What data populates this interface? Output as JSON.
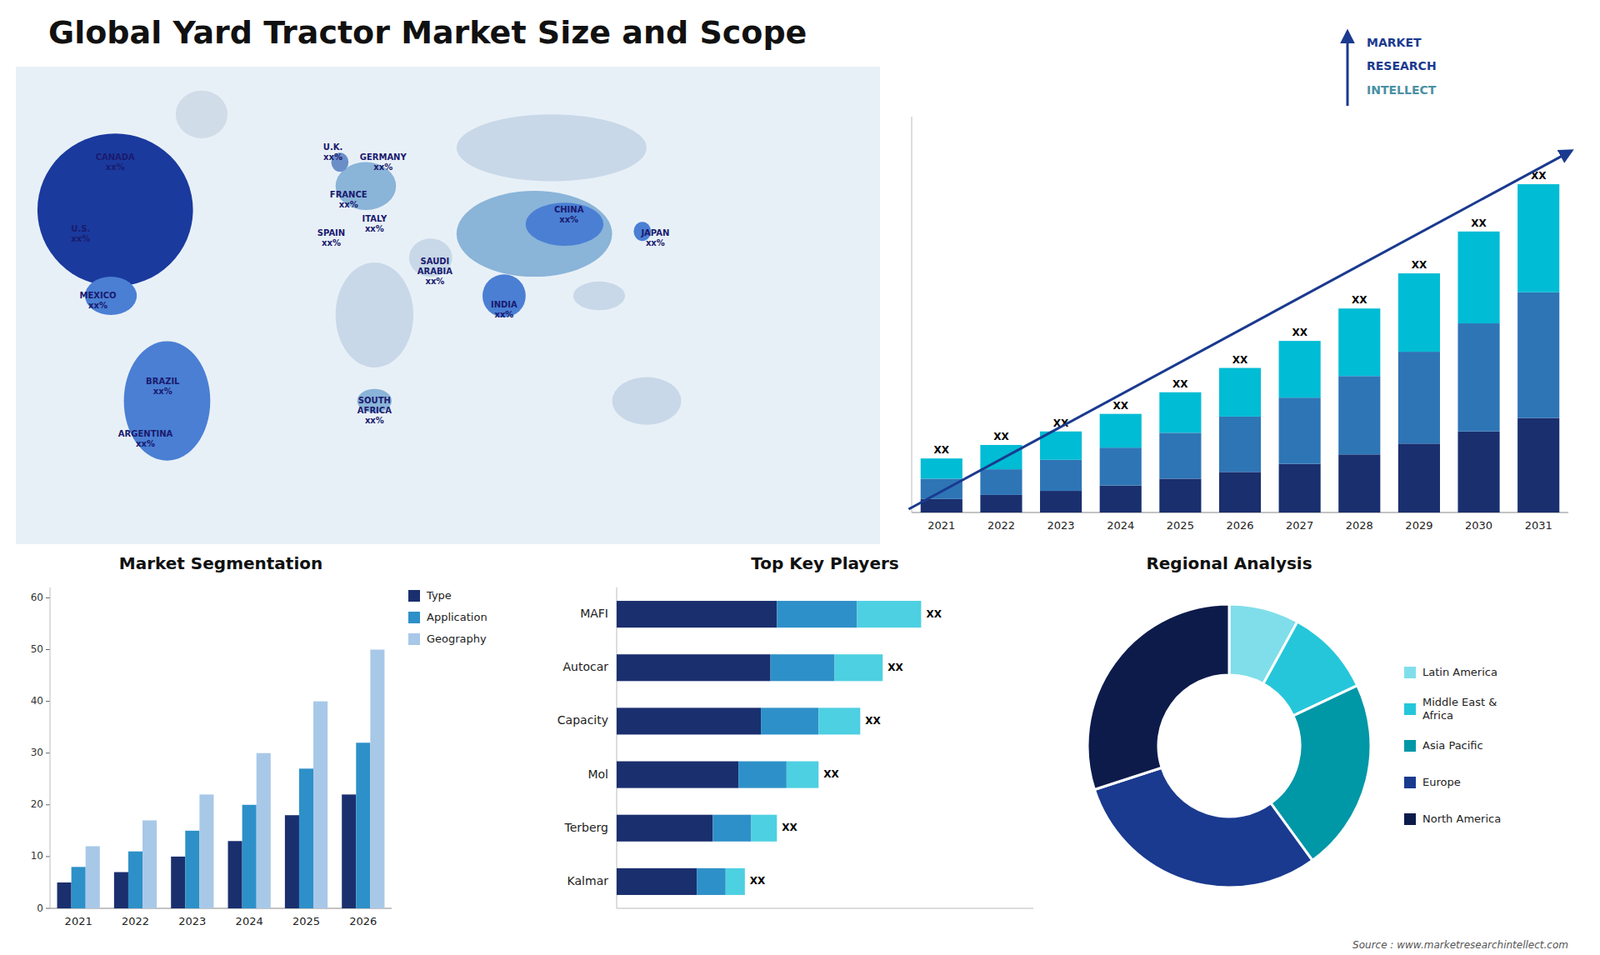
{
  "chart_data": [
    {
      "type": "map",
      "title": "Global Yard Tractor Market Size and Scope",
      "annotations": [
        "CANADA\nxx%",
        "U.S.\nxx%",
        "MEXICO\nxx%",
        "BRAZIL\nxx%",
        "ARGENTINA\nxx%",
        "U.K.\nxx%",
        "FRANCE\nxx%",
        "SPAIN\nxx%",
        "GERMANY\nxx%",
        "ITALY\nxx%",
        "SOUTH\nAFRICA\nxx%",
        "SAUDI\nARABIA\nxx%",
        "CHINA\nxx%",
        "INDIA\nxx%",
        "JAPAN\nxx%",
        "MARKET",
        "RESEARCH",
        "INTELLECT",
        "Source : www.marketresearchintellect.com"
      ],
      "color": "#e8f0f7",
      "colors": [
        "#d0dce8",
        "#1a3a9e",
        "#4a7fd4",
        "#4a7fd4",
        "#8ab4d8",
        "#6a8fc8",
        "#c8d8e8",
        "#8ab4d8",
        "#c8d8e8",
        "#c8d8e8",
        "#8ab4d8",
        "#4a7fd4",
        "#4a7fd4",
        "#4a7fd4",
        "#c8d8e8",
        "#c8d8e8"
      ]
    },
    {
      "type": "bar",
      "stacked": true,
      "categories": [
        2021,
        2022,
        2023,
        2024,
        2025,
        2026,
        2027,
        2028,
        2029,
        2030,
        2031
      ],
      "series": [
        {
          "color": "#1a2f6e",
          "values": [
            1.0,
            1.3,
            1.6,
            2.0,
            2.5,
            3.0,
            3.6,
            4.3,
            5.1,
            6.0,
            7.0
          ]
        },
        {
          "color": "#2e75b6",
          "values": [
            1.5,
            1.9,
            2.3,
            2.8,
            3.4,
            4.1,
            4.9,
            5.8,
            6.8,
            8.0,
            9.3
          ]
        },
        {
          "color": "#00bcd4",
          "values": [
            1.5,
            1.8,
            2.1,
            2.5,
            3.0,
            3.6,
            4.2,
            5.0,
            5.8,
            6.8,
            8.0
          ],
          "value_labels": [
            "XX",
            "XX",
            "XX",
            "XX",
            "XX",
            "XX",
            "XX",
            "XX",
            "XX",
            "XX",
            "XX"
          ]
        }
      ],
      "ylim": [
        0,
        29.3
      ],
      "tick_labels": "x",
      "grid": false
    },
    {
      "type": "bar",
      "title": "Market Segmentation",
      "categories": [
        2021,
        2022,
        2023,
        2024,
        2025,
        2026
      ],
      "series": [
        {
          "name": "Type",
          "color": "#1a2f6e",
          "values": [
            5,
            7,
            10,
            13,
            18,
            22
          ]
        },
        {
          "name": "Application",
          "color": "#2e90c8",
          "values": [
            8,
            11,
            15,
            20,
            27,
            32
          ]
        },
        {
          "name": "Geography",
          "color": "#a8c8e8",
          "values": [
            12,
            17,
            22,
            30,
            40,
            50
          ]
        }
      ],
      "ylim": [
        0,
        62
      ],
      "yticks": [
        0,
        10,
        20,
        30,
        40,
        50,
        60
      ],
      "legend": "right",
      "grid": false
    },
    {
      "type": "bar",
      "title": "Top Key Players",
      "orientation": "horizontal",
      "stacked": true,
      "categories": [
        "MAFI",
        "Autocar",
        "Capacity",
        "Mol",
        "Terberg",
        "Kalmar"
      ],
      "series": [
        {
          "color": "#1a2f6e",
          "values": [
            5.0,
            4.8,
            4.5,
            3.8,
            3.0,
            2.5
          ]
        },
        {
          "color": "#2e90c8",
          "values": [
            2.5,
            2.0,
            1.8,
            1.5,
            1.2,
            0.9
          ]
        },
        {
          "color": "#4dd0e1",
          "values": [
            2.0,
            1.5,
            1.3,
            1.0,
            0.8,
            0.6
          ],
          "value_labels": [
            "XX",
            "XX",
            "XX",
            "XX",
            "XX",
            "XX"
          ]
        }
      ],
      "xlim": [
        0,
        13
      ],
      "tick_labels": "y",
      "grid": false
    },
    {
      "type": "donut",
      "title": "Regional Analysis",
      "categories": [
        "Latin America",
        "Middle East &\nAfrica",
        "Asia Pacific",
        "Europe",
        "North America"
      ],
      "values": [
        8,
        10,
        22,
        30,
        30
      ],
      "colors": [
        "#80deea",
        "#26c6da",
        "#0097a7",
        "#1a3a8f",
        "#0d1b4b"
      ],
      "legend": "right"
    }
  ]
}
